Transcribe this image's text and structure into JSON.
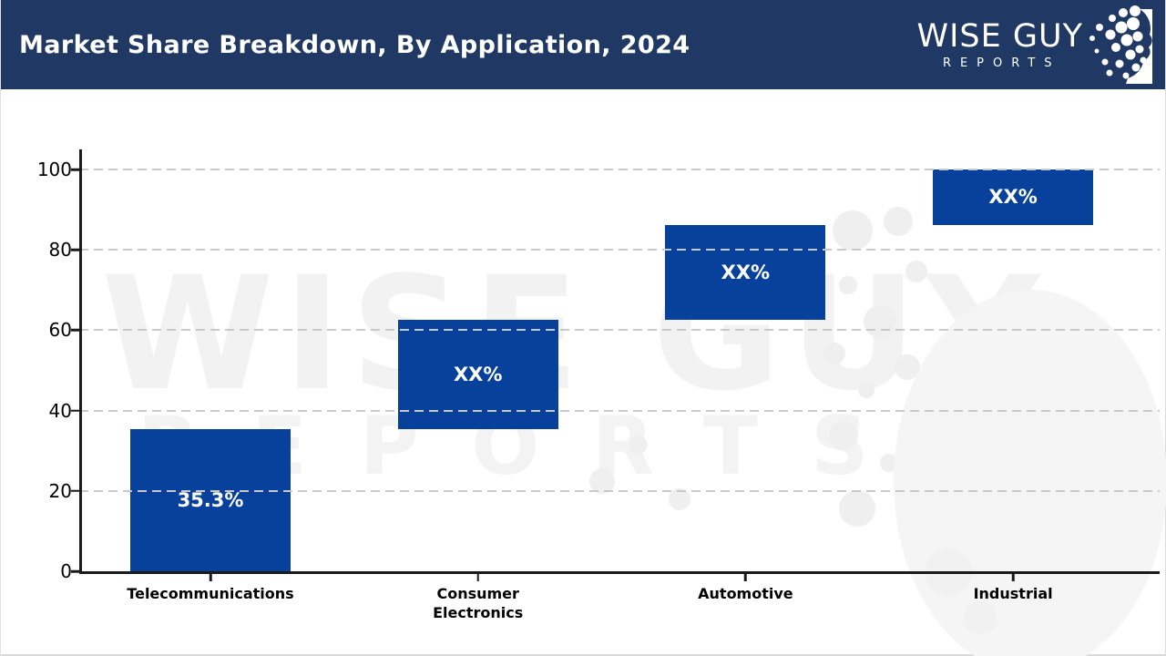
{
  "header": {
    "title": "Market Share Breakdown, By Application, 2024",
    "background_color": "#203864",
    "brand": {
      "name": "WISE GUY",
      "subname": "REPORTS"
    }
  },
  "watermark": {
    "line1": "WISE GUY",
    "line2": "REPORTS"
  },
  "chart_data": {
    "type": "bar",
    "subtype": "waterfall",
    "title": "Market Share Breakdown, By Application, 2024",
    "categories": [
      "Telecommunications",
      "Consumer\nElectronics",
      "Automotive",
      "Industrial"
    ],
    "segments": [
      {
        "category": "Telecommunications",
        "start": 0,
        "end": 35.3,
        "label": "35.3%"
      },
      {
        "category": "Consumer Electronics",
        "start": 35.3,
        "end": 62.6,
        "label": "XX%"
      },
      {
        "category": "Automotive",
        "start": 62.6,
        "end": 86.2,
        "label": "XX%"
      },
      {
        "category": "Industrial",
        "start": 86.2,
        "end": 100,
        "label": "XX%"
      }
    ],
    "yticks": [
      0,
      20,
      40,
      60,
      80,
      100
    ],
    "ylim": [
      0,
      105
    ],
    "grid": "horizontal-dashed",
    "legend": "none",
    "bar_color": "#08419c",
    "bar_label_color": "#ffffff",
    "xlabel": "",
    "ylabel": ""
  }
}
